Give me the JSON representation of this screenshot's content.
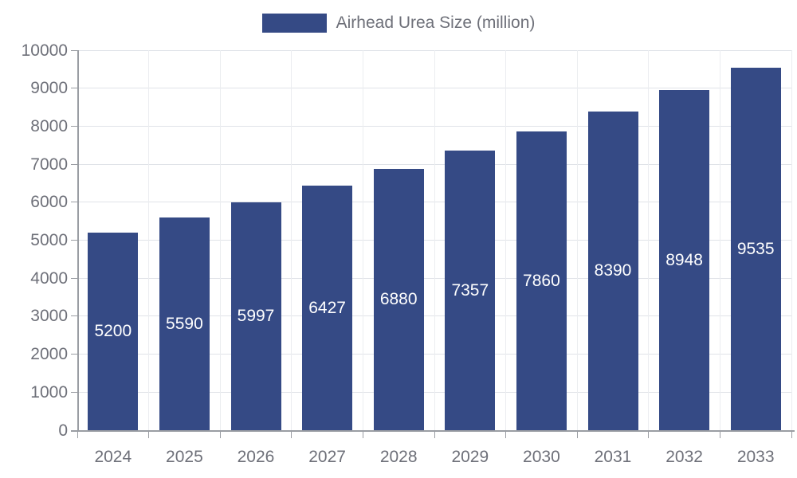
{
  "legend": {
    "label": "Airhead Urea Size (million)",
    "swatch_color": "#354a85"
  },
  "chart_data": {
    "type": "bar",
    "title": "Airhead Urea Size (million)",
    "series_name": "Airhead Urea Size (million)",
    "categories": [
      "2024",
      "2025",
      "2026",
      "2027",
      "2028",
      "2029",
      "2030",
      "2031",
      "2032",
      "2033"
    ],
    "values": [
      5200,
      5590,
      5997,
      6427,
      6880,
      7357,
      7860,
      8390,
      8948,
      9535
    ],
    "xlabel": "",
    "ylabel": "",
    "ylim": [
      0,
      10000
    ],
    "ytick_interval": 1000,
    "ytick_labels": [
      "0",
      "1000",
      "2000",
      "3000",
      "4000",
      "5000",
      "6000",
      "7000",
      "8000",
      "9000",
      "10000"
    ],
    "grid": true,
    "legend_position": "top-center",
    "bar_labels_inside": true,
    "colors": {
      "bar": "#354a85",
      "bar_label": "#ffffff",
      "axis_text": "#6e7079",
      "axis_line": "#9a9da3",
      "grid_h": "#e0e3e8",
      "grid_v": "#ebedf0"
    }
  }
}
